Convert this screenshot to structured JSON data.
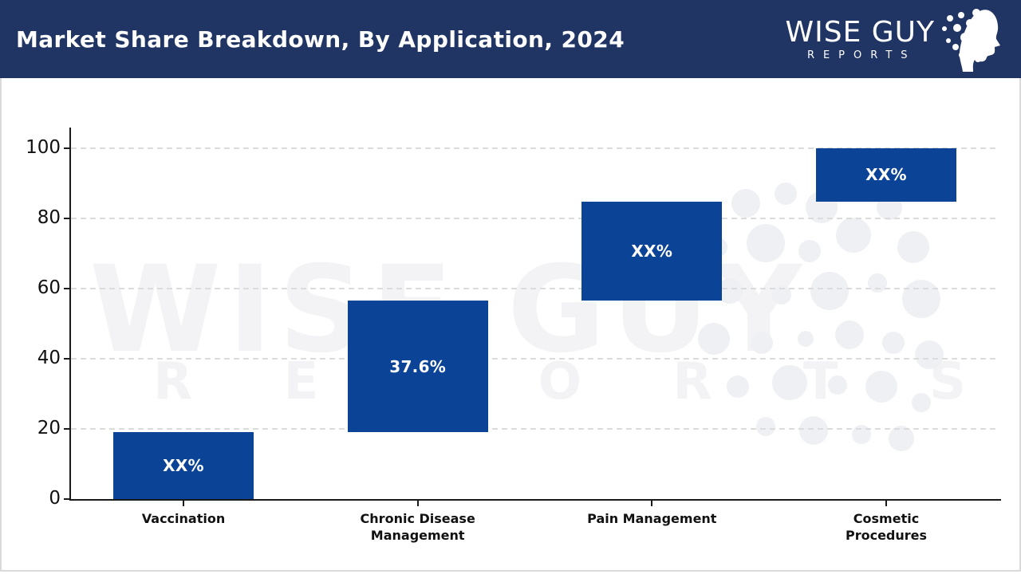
{
  "header": {
    "title": "Market Share Breakdown, By Application, 2024",
    "logo": {
      "primary": "WISE GUY",
      "secondary": "REPORTS"
    }
  },
  "watermark": {
    "primary": "WISE GUY",
    "secondary": "R E P O R T S"
  },
  "chart_data": {
    "type": "bar",
    "subtype": "floating-waterfall",
    "title": "Market Share Breakdown, By Application, 2024",
    "xlabel": "",
    "ylabel": "",
    "ylim": [
      0,
      105
    ],
    "yticks": [
      0,
      20,
      40,
      60,
      80,
      100
    ],
    "grid": "horizontal-dashed",
    "legend": "none",
    "bar_color": "#0b4397",
    "bars": [
      {
        "category": "Vaccination",
        "category_lines": [
          "Vaccination"
        ],
        "start": 0,
        "end": 19,
        "value_label": "XX%"
      },
      {
        "category": "Chronic Disease Management",
        "category_lines": [
          "Chronic Disease",
          "Management"
        ],
        "start": 19,
        "end": 56.6,
        "value_label": "37.6%"
      },
      {
        "category": "Pain Management",
        "category_lines": [
          "Pain Management"
        ],
        "start": 56.6,
        "end": 84.8,
        "value_label": "XX%"
      },
      {
        "category": "Cosmetic Procedures",
        "category_lines": [
          "Cosmetic",
          "Procedures"
        ],
        "start": 84.8,
        "end": 100,
        "value_label": "XX%"
      }
    ]
  }
}
